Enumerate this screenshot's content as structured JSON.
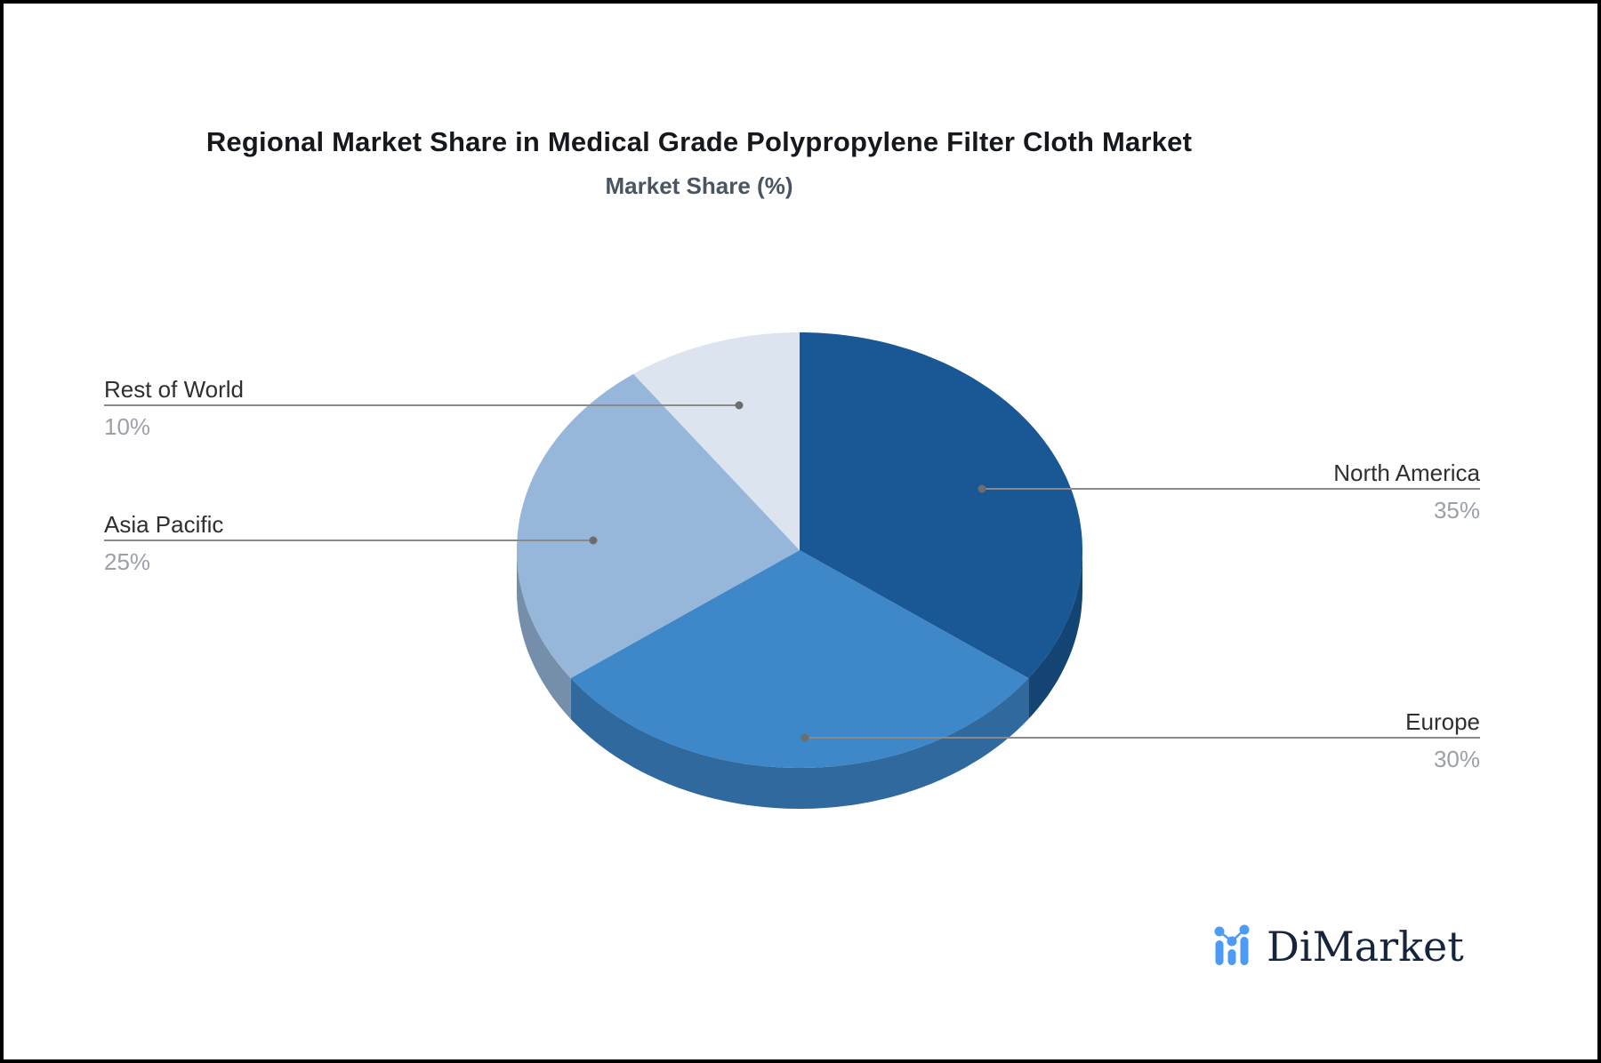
{
  "title": "Regional Market Share in Medical Grade Polypropylene Filter Cloth Market",
  "subtitle": "Market Share (%)",
  "logo": {
    "text": "DiMarket",
    "icon": "bar-line-chart-icon"
  },
  "chart_data": {
    "type": "pie",
    "style": "3d",
    "title": "Regional Market Share in Medical Grade Polypropylene Filter Cloth Market",
    "subtitle": "Market Share (%)",
    "categories": [
      "North America",
      "Europe",
      "Asia Pacific",
      "Rest of World"
    ],
    "values": [
      35,
      30,
      25,
      10
    ],
    "unit": "%",
    "value_labels": [
      "35%",
      "30%",
      "25%",
      "10%"
    ],
    "colors": [
      "#1A5795",
      "#3E87C9",
      "#96B7DA",
      "#DCE4EF"
    ],
    "start_angle_deg": 0,
    "direction": "clockwise",
    "label_sides": [
      "right",
      "right",
      "left",
      "left"
    ],
    "leader_line_color": "#8a8a8a",
    "label_name_color": "#2f2f2f",
    "label_value_color": "#9ba1a8"
  }
}
